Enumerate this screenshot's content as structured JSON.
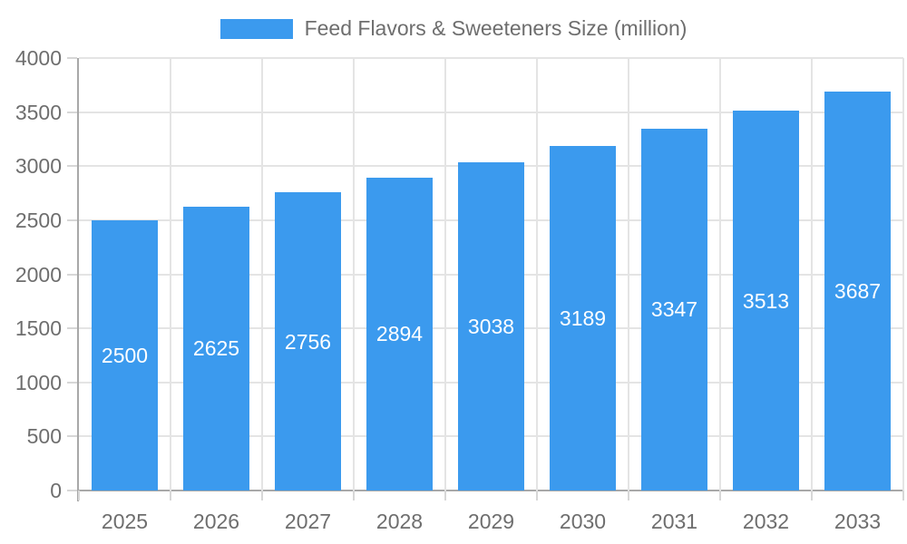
{
  "legend": {
    "label": "Feed Flavors & Sweeteners Size (million)"
  },
  "chart_data": {
    "type": "bar",
    "title": "Feed Flavors & Sweeteners Size (million)",
    "categories": [
      "2025",
      "2026",
      "2027",
      "2028",
      "2029",
      "2030",
      "2031",
      "2032",
      "2033"
    ],
    "values": [
      2500,
      2625,
      2756,
      2894,
      3038,
      3189,
      3347,
      3513,
      3687
    ],
    "xlabel": "",
    "ylabel": "",
    "ylim": [
      0,
      4000
    ],
    "ytick_step": 500,
    "yticks": [
      "0",
      "500",
      "1000",
      "1500",
      "2000",
      "2500",
      "3000",
      "3500",
      "4000"
    ],
    "grid": true,
    "legend_position": "top",
    "value_labels": "inside-center",
    "colors": {
      "bar": "#3b9aee",
      "value_label": "#ffffff",
      "axis_text": "#6e6e6e",
      "grid_line": "#e4e4e4",
      "axis_line": "#a8a8a8",
      "tick_line": "#d7d7d7",
      "background": "#ffffff"
    }
  }
}
